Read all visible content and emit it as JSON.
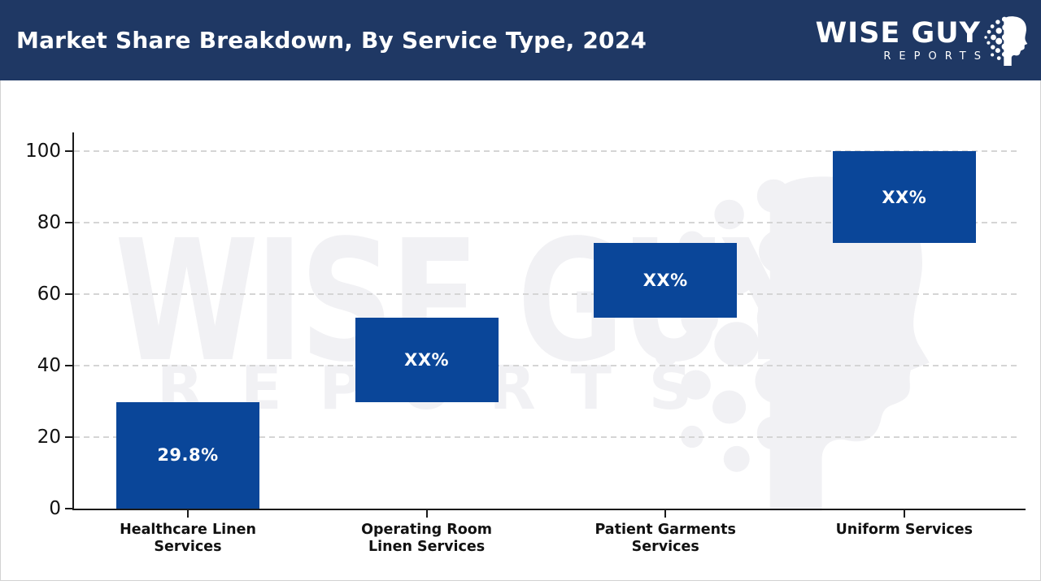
{
  "header": {
    "title": "Market Share Breakdown, By Service Type, 2024",
    "logo": {
      "line1": "WISE GUY",
      "line2": "REPORTS"
    }
  },
  "watermark": {
    "line1": "WISE GUY",
    "line2": "REPORTS"
  },
  "chart_data": {
    "type": "bar",
    "variant": "waterfall",
    "title": "Market Share Breakdown, By Service Type, 2024",
    "categories": [
      "Healthcare Linen Services",
      "Operating Room Linen Services",
      "Patient Garments Services",
      "Uniform Services"
    ],
    "category_display_lines": [
      [
        "Healthcare Linen",
        "Services"
      ],
      [
        "Operating Room",
        "Linen Services"
      ],
      [
        "Patient Garments",
        "Services"
      ],
      [
        "Uniform Services"
      ]
    ],
    "segments": [
      {
        "start": 0,
        "end": 29.8,
        "label": "29.8%"
      },
      {
        "start": 29.8,
        "end": 53.5,
        "label": "XX%"
      },
      {
        "start": 53.5,
        "end": 74.3,
        "label": "XX%"
      },
      {
        "start": 74.3,
        "end": 100,
        "label": "XX%"
      }
    ],
    "ylim": [
      0,
      100
    ],
    "yticks": [
      0,
      20,
      40,
      60,
      80,
      100
    ],
    "xlabel": "",
    "ylabel": "",
    "grid": "horizontal-dashed",
    "legend": "none"
  },
  "colors": {
    "header_bg": "#1f3864",
    "bar": "#0a4699",
    "value_label": "#ffffff",
    "grid": "#d5d5d5",
    "axis": "#1a1a1a",
    "watermark": "#f1f1f4",
    "frame_border": "#d2d2d2"
  }
}
